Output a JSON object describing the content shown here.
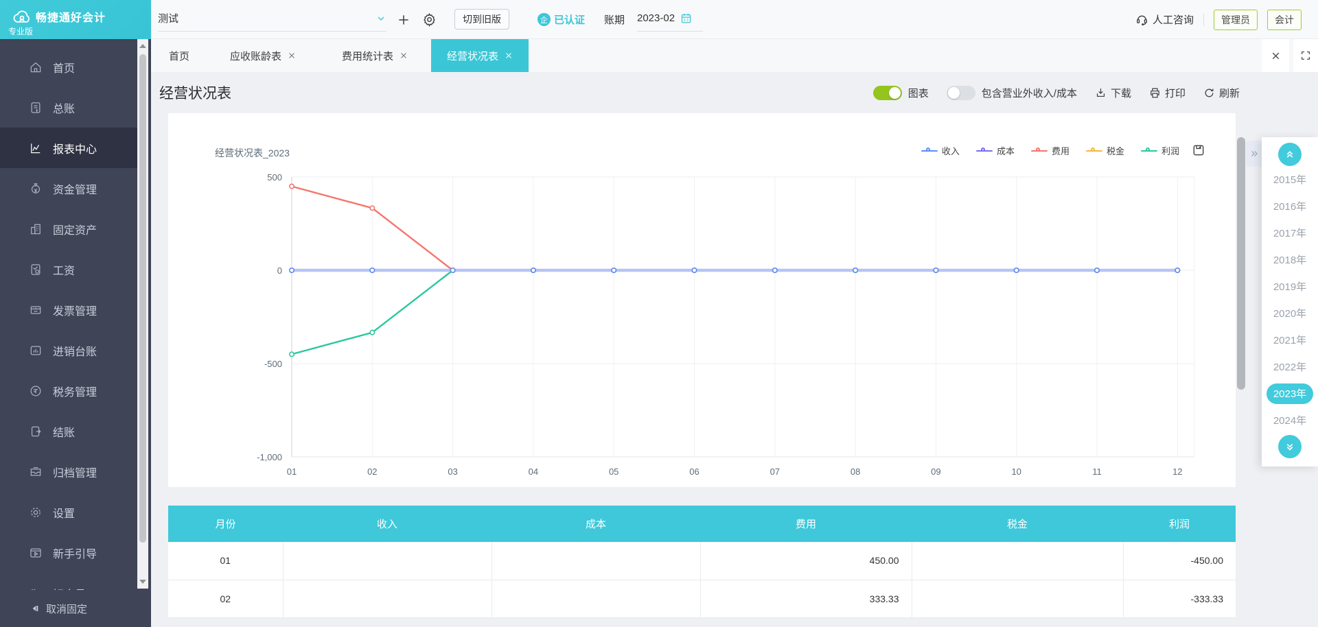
{
  "topbar": {
    "logo_title": "畅捷通好会计",
    "logo_subtitle": "专业版",
    "account": "测试",
    "switch_old_label": "切到旧版",
    "certified_badge_char": "企",
    "certified_label": "已认证",
    "period_label": "账期",
    "period_value": "2023-02",
    "support_label": "人工咨询",
    "role_buttons": [
      "管理员",
      "会计"
    ]
  },
  "sidebar": {
    "active": "报表中心",
    "unpin_label": "取消固定",
    "items": [
      {
        "label": "首页",
        "icon": "home-icon"
      },
      {
        "label": "总账",
        "icon": "ledger-icon"
      },
      {
        "label": "报表中心",
        "icon": "report-center-icon"
      },
      {
        "label": "资金管理",
        "icon": "fund-management-icon"
      },
      {
        "label": "固定资产",
        "icon": "fixed-assets-icon"
      },
      {
        "label": "工资",
        "icon": "salary-icon"
      },
      {
        "label": "发票管理",
        "icon": "invoice-management-icon"
      },
      {
        "label": "进销台账",
        "icon": "purchase-sale-ledger-icon"
      },
      {
        "label": "税务管理",
        "icon": "tax-management-icon"
      },
      {
        "label": "结账",
        "icon": "closing-icon"
      },
      {
        "label": "归档管理",
        "icon": "archive-management-icon"
      },
      {
        "label": "设置",
        "icon": "settings-icon"
      },
      {
        "label": "新手引导",
        "icon": "beginner-guide-icon"
      },
      {
        "label": "好会员",
        "icon": "member-icon"
      }
    ]
  },
  "tabs": {
    "items": [
      {
        "label": "首页",
        "closable": false,
        "active": false
      },
      {
        "label": "应收账龄表",
        "closable": true,
        "active": false
      },
      {
        "label": "费用统计表",
        "closable": true,
        "active": false
      },
      {
        "label": "经营状况表",
        "closable": true,
        "active": true
      }
    ]
  },
  "page": {
    "title": "经营状况表",
    "toggle_chart_label": "图表",
    "toggle_chart_state": "on",
    "toggle_nonoperating_label": "包含营业外收入/成本",
    "toggle_nonoperating_state": "off",
    "download_label": "下载",
    "print_label": "打印",
    "refresh_label": "刷新"
  },
  "chart_data": {
    "type": "line",
    "title": "经营状况表_2023",
    "x": [
      "01",
      "02",
      "03",
      "04",
      "05",
      "06",
      "07",
      "08",
      "09",
      "10",
      "11",
      "12"
    ],
    "series": [
      {
        "name": "收入",
        "color": "#5B8FF9",
        "values": [
          0,
          0,
          0,
          0,
          0,
          0,
          0,
          0,
          0,
          0,
          0,
          0
        ]
      },
      {
        "name": "成本",
        "color": "#7B6CF0",
        "values": [
          0,
          0,
          0,
          0,
          0,
          0,
          0,
          0,
          0,
          0,
          0,
          0
        ]
      },
      {
        "name": "费用",
        "color": "#F5756C",
        "values": [
          450,
          333.33,
          0,
          0,
          0,
          0,
          0,
          0,
          0,
          0,
          0,
          0
        ]
      },
      {
        "name": "税金",
        "color": "#F3B73F",
        "values": [
          0,
          0,
          0,
          0,
          0,
          0,
          0,
          0,
          0,
          0,
          0,
          0
        ]
      },
      {
        "name": "利润",
        "color": "#2BC79E",
        "values": [
          -450,
          -333.33,
          0,
          0,
          0,
          0,
          0,
          0,
          0,
          0,
          0,
          0
        ]
      }
    ],
    "yticks": [
      {
        "v": 500,
        "label": "500"
      },
      {
        "v": 0,
        "label": "0"
      },
      {
        "v": -500,
        "label": "-500"
      },
      {
        "v": -1000,
        "label": "-1,000"
      }
    ],
    "ylim": [
      -1000,
      500
    ],
    "grid": true,
    "legend_position": "top-right"
  },
  "table": {
    "columns": [
      "月份",
      "收入",
      "成本",
      "费用",
      "税金",
      "利润"
    ],
    "rows": [
      [
        "01",
        "",
        "",
        "450.00",
        "",
        "-450.00"
      ],
      [
        "02",
        "",
        "",
        "333.33",
        "",
        "-333.33"
      ]
    ]
  },
  "year_panel": {
    "years": [
      "2015年",
      "2016年",
      "2017年",
      "2018年",
      "2019年",
      "2020年",
      "2021年",
      "2022年",
      "2023年",
      "2024年"
    ],
    "selected": "2023年"
  },
  "colors": {
    "brand_cyan": "#3bc6d6",
    "table_header": "#3ec8da",
    "toggle_on_green": "#93c51d",
    "role_button_border": "#9acd32",
    "sidebar_bg": "#3f4456",
    "sidebar_active_bg": "#2e3242"
  }
}
